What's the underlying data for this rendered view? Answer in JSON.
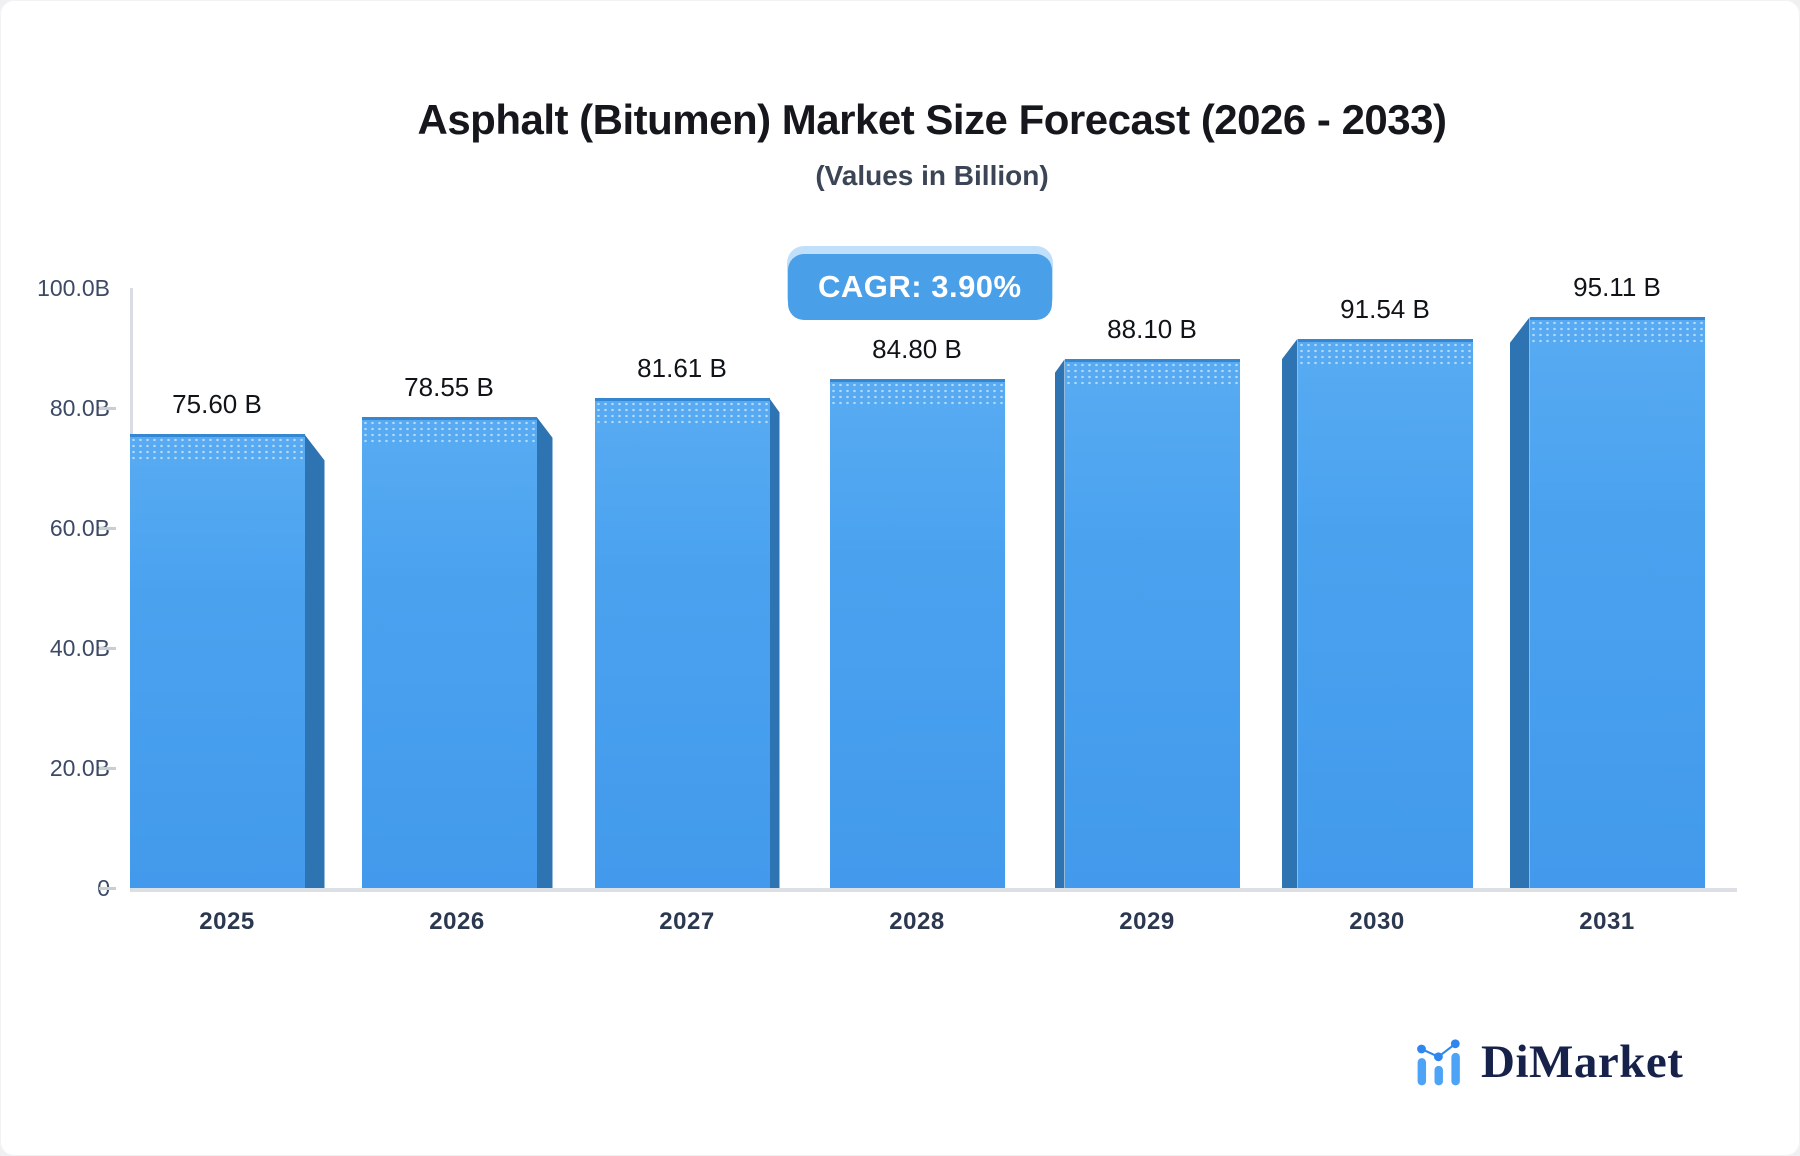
{
  "header": {
    "title": "Asphalt (Bitumen) Market Size Forecast (2026 - 2033)",
    "subtitle": "(Values in Billion)"
  },
  "badge": {
    "label": "CAGR: 3.90%"
  },
  "chart_data": {
    "type": "bar",
    "title": "Asphalt (Bitumen) Market Size Forecast (2026 - 2033)",
    "subtitle": "(Values in Billion)",
    "cagr": "3.90%",
    "categories": [
      "2025",
      "2026",
      "2027",
      "2028",
      "2029",
      "2030",
      "2031"
    ],
    "values": [
      75.6,
      78.55,
      81.61,
      84.8,
      88.1,
      91.54,
      95.11
    ],
    "value_labels": [
      "75.60 B",
      "78.55 B",
      "81.61 B",
      "84.80 B",
      "88.10 B",
      "91.54 B",
      "95.11 B"
    ],
    "ylabel": "",
    "xlabel": "",
    "ylim": [
      0,
      100
    ],
    "yticks": [
      {
        "label": "100.0B",
        "value": 100
      },
      {
        "label": "80.0B",
        "value": 80
      },
      {
        "label": "60.0B",
        "value": 60
      },
      {
        "label": "40.0B",
        "value": 40
      },
      {
        "label": "20.0B",
        "value": 20
      },
      {
        "label": "0",
        "value": 0
      }
    ],
    "grid": false,
    "legend": false,
    "bar_color": "#4aa2ef",
    "bar_side_color": "#2e74b2",
    "axis_color": "#d9dce2"
  },
  "logo": {
    "text": "DiMarket",
    "icon": "bar-chart-logo-icon"
  },
  "colors": {
    "badge_bg": "#4a9fe9",
    "badge_text": "#ffffff",
    "title_text": "#15171c",
    "subtitle_text": "#3b4555",
    "tick_text": "#3c4a66",
    "category_text": "#2b3850",
    "value_text": "#101418",
    "logo_text": "#16224a",
    "logo_icon_bar": "#4da3f5",
    "logo_icon_dot": "#2f86ef"
  }
}
